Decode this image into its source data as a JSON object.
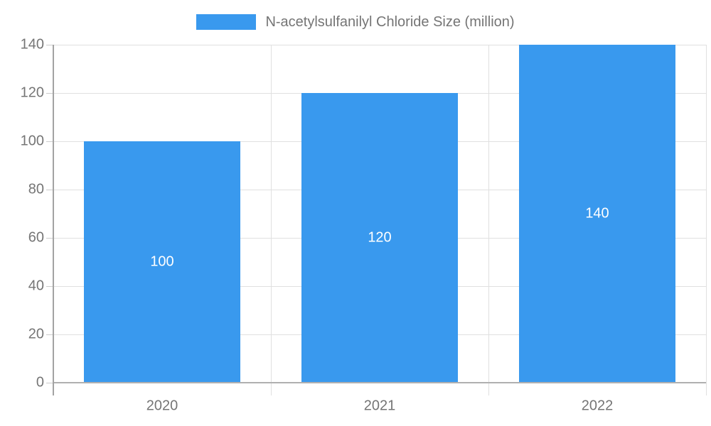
{
  "legend": {
    "label": "N-acetylsulfanilyl Chloride Size (million)"
  },
  "colors": {
    "bar": "#3999EE",
    "bar_label": "#FFFFFF",
    "grid_line": "#E0E0E0",
    "tick_line": "#CCCCCC",
    "x_axis_line": "#B0B0B0",
    "y_axis_line": "#A3A3A3",
    "label_text": "#757575",
    "background": "#FFFFFF"
  },
  "chart_data": {
    "type": "bar",
    "title": "",
    "categories": [
      "2020",
      "2021",
      "2022"
    ],
    "series": [
      {
        "name": "N-acetylsulfanilyl Chloride Size (million)",
        "values": [
          100,
          120,
          140
        ]
      }
    ],
    "data_labels": [
      "100",
      "120",
      "140"
    ],
    "xlabel": "",
    "ylabel": "",
    "ylim": [
      0,
      140
    ],
    "ytick_step": 20,
    "ytick_labels": [
      "0",
      "20",
      "40",
      "60",
      "80",
      "100",
      "120",
      "140"
    ],
    "legend_position": "top-center",
    "grid": true
  }
}
